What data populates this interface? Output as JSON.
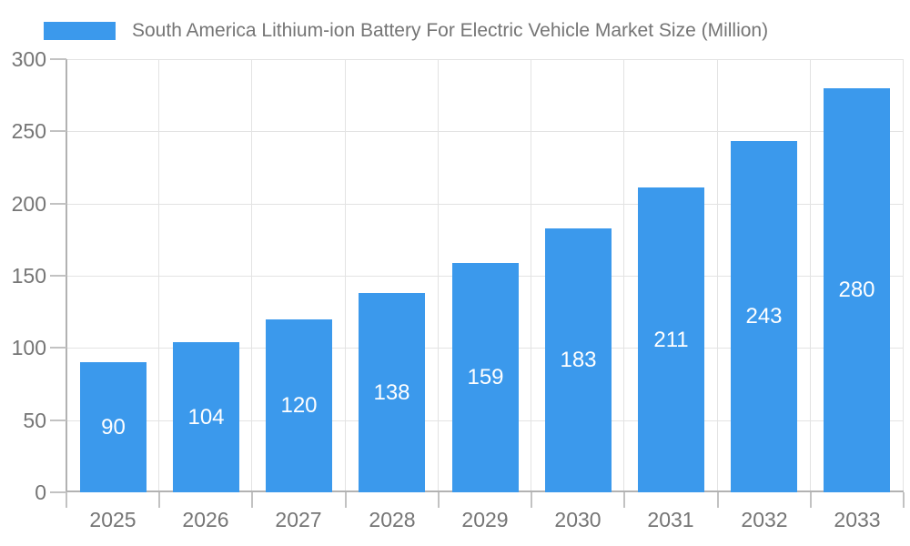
{
  "legend": {
    "label": "South America Lithium-ion Battery For Electric Vehicle Market Size (Million)"
  },
  "colors": {
    "bar": "#3b99ec",
    "grid": "#e3e3e3",
    "axis": "#b2b2b2",
    "tick": "#c2c2c2",
    "text": "#757575",
    "value_label": "#ffffff",
    "background": "#ffffff"
  },
  "chart_data": {
    "type": "bar",
    "title": "South America Lithium-ion Battery For Electric Vehicle Market Size (Million)",
    "series_name": "South America Lithium-ion Battery For Electric Vehicle Market Size (Million)",
    "categories": [
      "2025",
      "2026",
      "2027",
      "2028",
      "2029",
      "2030",
      "2031",
      "2032",
      "2033"
    ],
    "values": [
      90,
      104,
      120,
      138,
      159,
      183,
      211,
      243,
      280
    ],
    "xlabel": "",
    "ylabel": "",
    "ylim": [
      0,
      300
    ],
    "y_ticks": [
      0,
      50,
      100,
      150,
      200,
      250,
      300
    ],
    "grid": true,
    "legend_position": "top-left",
    "value_labels": "inside-center"
  }
}
